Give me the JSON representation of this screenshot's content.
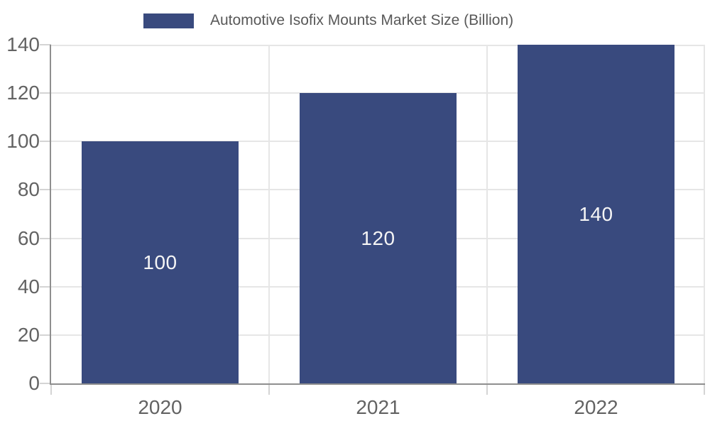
{
  "legend": {
    "label": "Automotive Isofix Mounts Market Size (Billion)"
  },
  "chart_data": {
    "type": "bar",
    "title": "Automotive Isofix Mounts Market Size (Billion)",
    "categories": [
      "2020",
      "2021",
      "2022"
    ],
    "values": [
      100,
      120,
      140
    ],
    "series": [
      {
        "name": "Automotive Isofix Mounts Market Size (Billion)",
        "values": [
          100,
          120,
          140
        ]
      }
    ],
    "bar_value_labels": [
      "100",
      "120",
      "140"
    ],
    "xlabel": "",
    "ylabel": "",
    "ylim": [
      0,
      140
    ],
    "yticks": [
      0,
      20,
      40,
      60,
      80,
      100,
      120,
      140
    ],
    "grid": true,
    "legend_position": "top-center",
    "colors": {
      "bar": "#394a7e",
      "grid": "#e6e6e6",
      "axis": "#8f8f8f",
      "tick": "#d4d4d4",
      "tick_label": "#636363",
      "legend_label": "#595959",
      "bar_value_label": "#f5f5f5",
      "background": "#ffffff"
    }
  }
}
